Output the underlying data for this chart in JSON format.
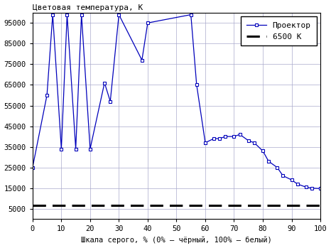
{
  "x": [
    0,
    5,
    7,
    10,
    12,
    15,
    17,
    20,
    25,
    27,
    30,
    38,
    40,
    55,
    57,
    60,
    63,
    65,
    67,
    70,
    72,
    75,
    77,
    80,
    82,
    85,
    87,
    90,
    92,
    95,
    97,
    100
  ],
  "y": [
    25000,
    60000,
    99000,
    34000,
    99000,
    34000,
    99000,
    34000,
    66000,
    57000,
    99000,
    77000,
    95000,
    99000,
    65000,
    37000,
    39000,
    39000,
    40000,
    40000,
    41000,
    38000,
    37000,
    33000,
    28000,
    25000,
    21000,
    19000,
    17000,
    15500,
    15000,
    14800
  ],
  "ref_y": 6500,
  "title": "Цветовая температура, К",
  "xlabel": "Шкала серого, % (0% – чёрный, 100% – белый)",
  "legend_line": "Проектор",
  "legend_dashed": "6500 К",
  "ylim_min": 0,
  "ylim_max": 100000,
  "xlim_min": 0,
  "xlim_max": 100,
  "yticks": [
    5000,
    15000,
    25000,
    35000,
    45000,
    55000,
    65000,
    75000,
    85000,
    95000
  ],
  "xticks": [
    0,
    10,
    20,
    30,
    40,
    50,
    60,
    70,
    80,
    90,
    100
  ],
  "line_color": "#0000BB",
  "ref_color": "#000000",
  "bg_color": "#FFFFFF",
  "grid_color": "#AAAACC"
}
